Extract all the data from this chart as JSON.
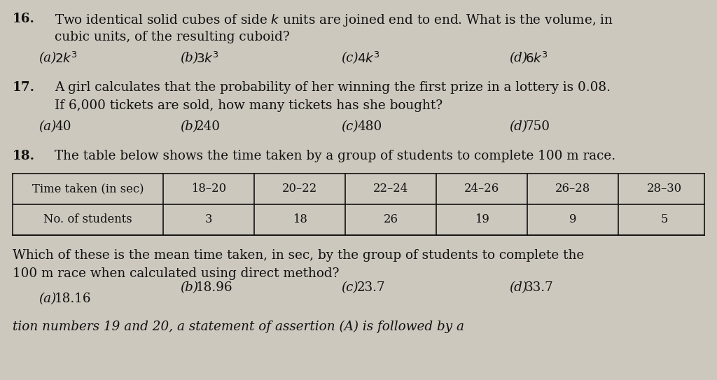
{
  "background_color": "#cdc8be",
  "text_color": "#111111",
  "q16_num": "16.",
  "q16_line1": "Two identical solid cubes of side $k$ units are joined end to end. What is the volume, in",
  "q16_line2": "cubic units, of the resulting cuboid?",
  "q16_opts": [
    [
      "(a)",
      "$2k^3$"
    ],
    [
      "(b)",
      "$3k^3$"
    ],
    [
      "(c)",
      "$4k^3$"
    ],
    [
      "(d)",
      "$6k^3$"
    ]
  ],
  "q17_num": "17.",
  "q17_line1": "A girl calculates that the probability of her winning the first prize in a lottery is 0.08.",
  "q17_line2": "If 6,000 tickets are sold, how many tickets has she bought?",
  "q17_opts": [
    [
      "(a)",
      "40"
    ],
    [
      "(b)",
      "240"
    ],
    [
      "(c)",
      "480"
    ],
    [
      "(d)",
      "750"
    ]
  ],
  "q18_num": "18.",
  "q18_line1": "The table below shows the time taken by a group of students to complete 100 m race.",
  "tbl_headers": [
    "Time taken (in sec)",
    "18–20",
    "20–22",
    "22–24",
    "24–26",
    "26–28",
    "28–30"
  ],
  "tbl_row_label": "No. of students",
  "tbl_row_vals": [
    "3",
    "18",
    "26",
    "19",
    "9",
    "5"
  ],
  "q18_qline1": "Which of these is the mean time taken, in sec, by the group of students to complete the",
  "q18_qline2": "100 m race when calculated using direct method?",
  "q18_opts": [
    [
      "(a)",
      "18.16"
    ],
    [
      "(b)",
      "18.96"
    ],
    [
      "(c)",
      "23.7"
    ],
    [
      "(d)",
      "33.7"
    ]
  ],
  "footer": "tion numbers 19 and 20, a statement of assertion (A) is followed by a",
  "fs_main": 13.2,
  "fs_table": 11.8
}
